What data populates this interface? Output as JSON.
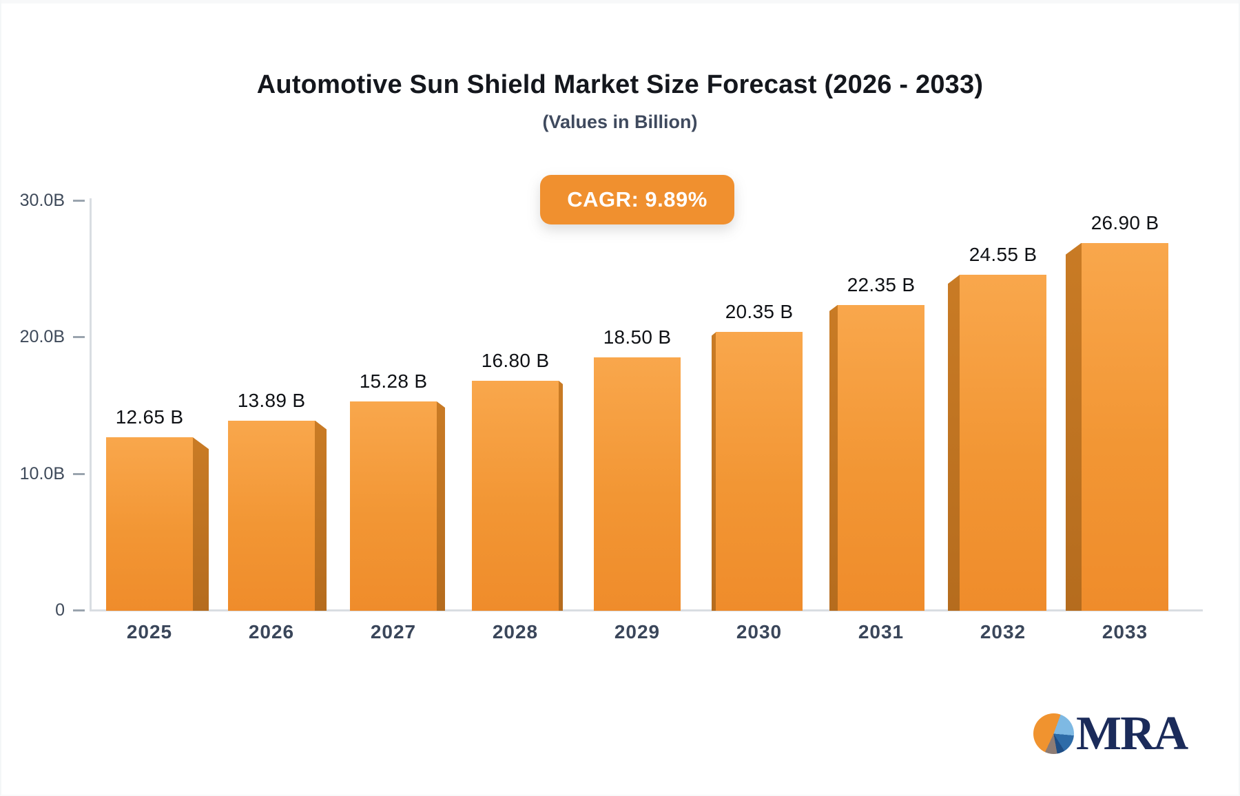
{
  "header": {
    "title": "Automotive Sun Shield Market Size Forecast (2026 - 2033)",
    "subtitle": "(Values in Billion)",
    "cagr_badge": "CAGR: 9.89%"
  },
  "chart_data": {
    "type": "bar",
    "title": "Automotive Sun Shield Market Size Forecast (2026 - 2033)",
    "subtitle": "(Values in Billion)",
    "cagr": "9.89%",
    "categories": [
      "2025",
      "2026",
      "2027",
      "2028",
      "2029",
      "2030",
      "2031",
      "2032",
      "2033"
    ],
    "values": [
      12.65,
      13.89,
      15.28,
      16.8,
      18.5,
      20.35,
      22.35,
      24.55,
      26.9
    ],
    "value_labels": [
      "12.65 B",
      "13.89 B",
      "15.28 B",
      "16.80 B",
      "18.50 B",
      "20.35 B",
      "22.35 B",
      "24.55 B",
      "26.90 B"
    ],
    "xlabel": "",
    "ylabel": "",
    "ylim": [
      0,
      30
    ],
    "y_ticks": [
      {
        "label": "30.0B",
        "value": 30
      },
      {
        "label": "20.0B",
        "value": 20
      },
      {
        "label": "10.0B",
        "value": 10
      },
      {
        "label": "0",
        "value": 0
      }
    ],
    "grid": false,
    "legend": false,
    "style": "3d-bars-center-perspective",
    "colors": {
      "bar_top": "#F9A74C",
      "bar_bottom": "#EF8C2B",
      "bar_side": "#BD7222",
      "badge_background": "#F0902F",
      "badge_text": "#FFFFFF",
      "axis_line": "#D9DDE2",
      "tick_text": "#3F4A5A",
      "value_label_text": "#0F1115",
      "title_text": "#14171D",
      "subtitle_text": "#3F4A5E"
    }
  },
  "branding": {
    "logo_text": "MRA",
    "logo_pie_colors": [
      "#F0932F",
      "#7EB9E3",
      "#2E6CA8",
      "#1E4E86",
      "#8D7C75"
    ],
    "logo_text_color": "#1B2B5A"
  }
}
